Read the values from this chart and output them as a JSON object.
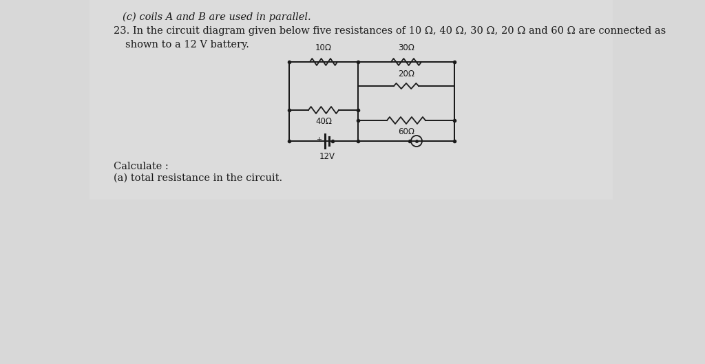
{
  "page_bg": "#d8d8d8",
  "paper_bg": "#e8e8e8",
  "text_color": "#1a1a1a",
  "wire_color": "#1a1a1a",
  "title_line1": "(c) coils A and B are used in parallel.",
  "problem_text_line1": "23. In the circuit diagram given below five resistances of 10 Ω, 40 Ω, 30 Ω, 20 Ω and 60 Ω are connected as",
  "problem_text_line2": "shown to a 12 V battery.",
  "calc_text": "Calculate :",
  "part_a_text": "(a) total resistance in the circuit.",
  "r10_label": "10Ω",
  "r40_label": "40Ω",
  "r30_label": "30Ω",
  "r20_label": "20Ω",
  "r60_label": "60Ω",
  "v_label": "12V",
  "font_size_main": 10.5,
  "font_size_circuit": 8.5
}
